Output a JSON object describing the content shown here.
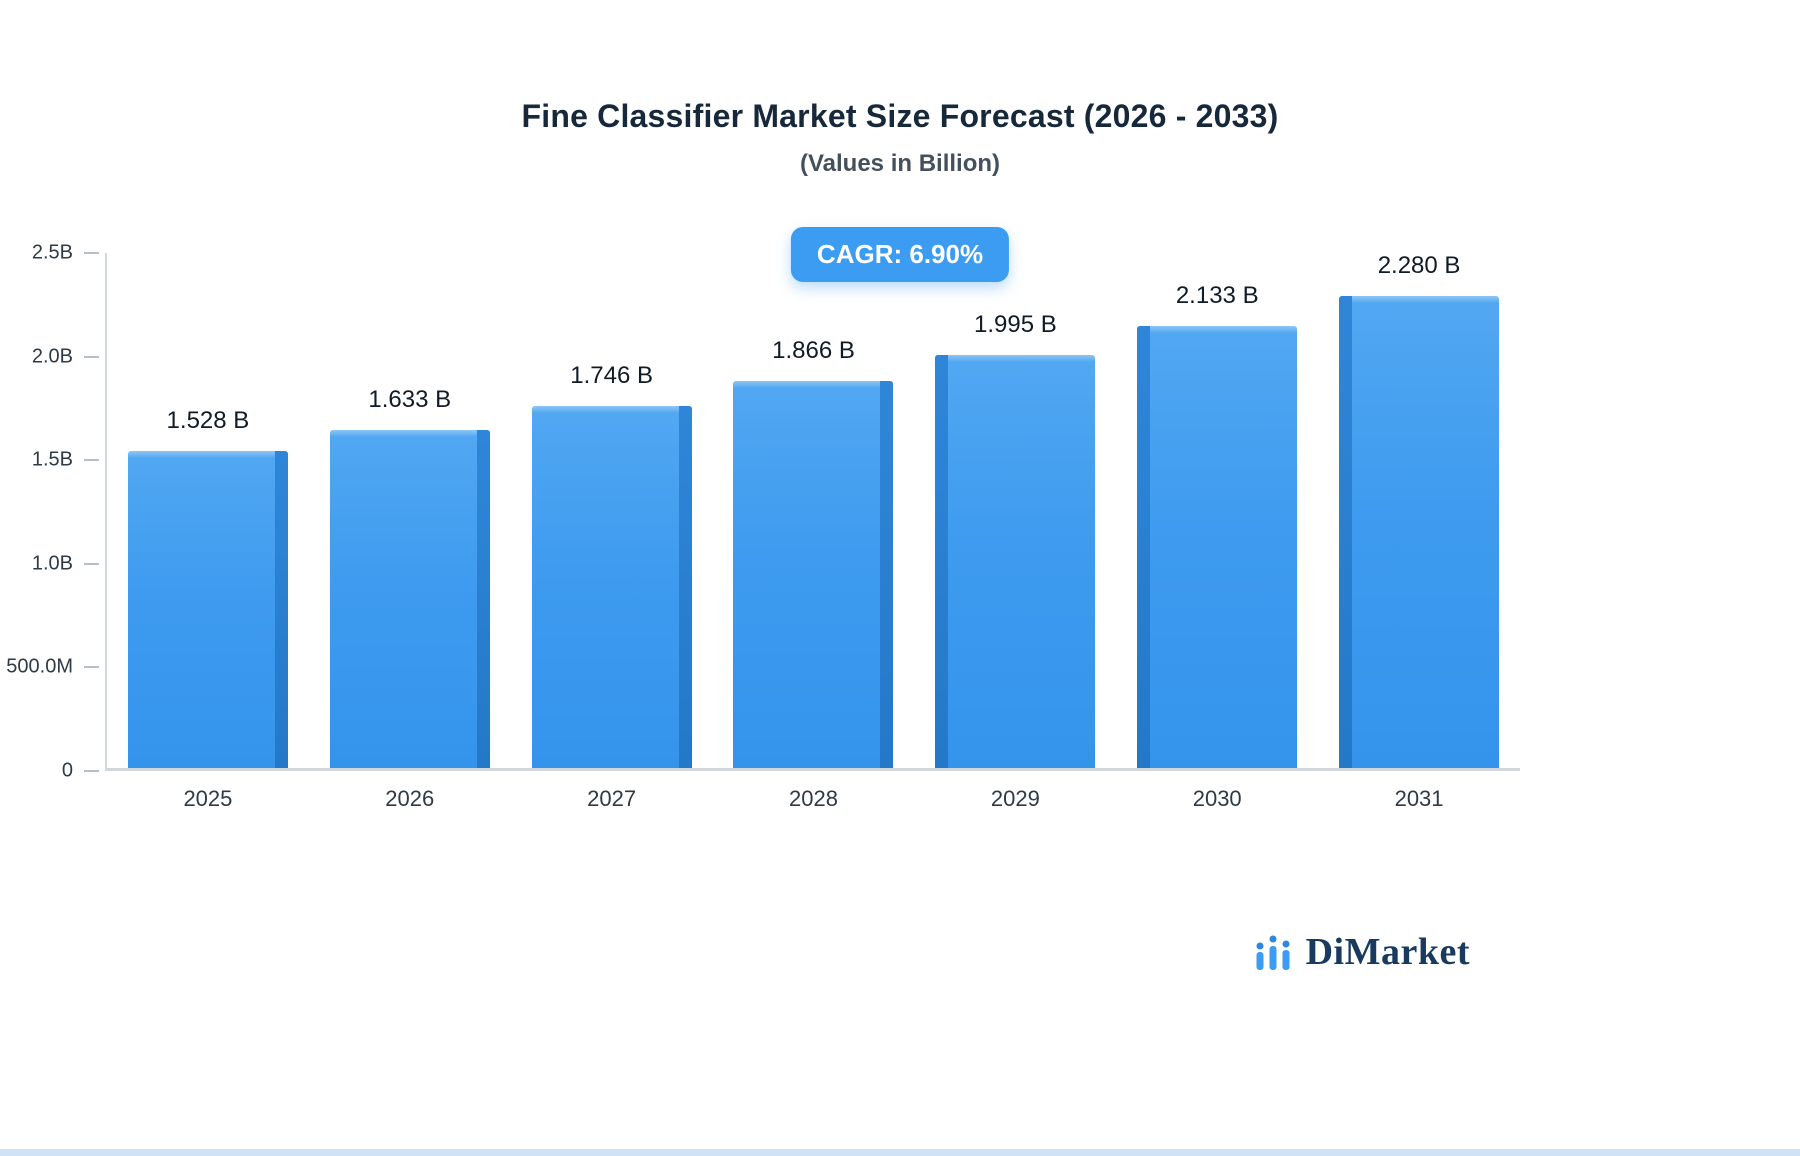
{
  "chart_data": {
    "type": "bar",
    "title": "Fine Classifier Market Size Forecast (2026 - 2033)",
    "subtitle": "(Values in Billion)",
    "cagr_label": "CAGR: 6.90%",
    "categories": [
      "2025",
      "2026",
      "2027",
      "2028",
      "2029",
      "2030",
      "2031"
    ],
    "values": [
      1.528,
      1.633,
      1.746,
      1.866,
      1.995,
      2.133,
      2.28
    ],
    "value_labels": [
      "1.528 B",
      "1.633 B",
      "1.746 B",
      "1.866 B",
      "1.995 B",
      "2.133 B",
      "2.280 B"
    ],
    "xlabel": "",
    "ylabel": "",
    "ylim": [
      0,
      2.5
    ],
    "y_ticks": [
      {
        "label": "2.5B",
        "value": 2.5
      },
      {
        "label": "2.0B",
        "value": 2.0
      },
      {
        "label": "1.5B",
        "value": 1.5
      },
      {
        "label": "1.0B",
        "value": 1.0
      },
      {
        "label": "500.0M",
        "value": 0.5
      },
      {
        "label": "0",
        "value": 0
      }
    ],
    "grid": "off",
    "legend": "none",
    "colors": {
      "bar_main": "#3e9bef",
      "bar_highlight": "#52a8f2",
      "bar_dark_side": "#2478c8",
      "badge_bg": "#3b9cf2",
      "badge_text": "#ffffff",
      "title_text": "#16283a",
      "axis_line": "#d2d7dc",
      "bottom_strip": "#cfe2f6"
    }
  },
  "footer": {
    "brand": "DiMarket",
    "logo_icon": "bar-chart-icon"
  }
}
